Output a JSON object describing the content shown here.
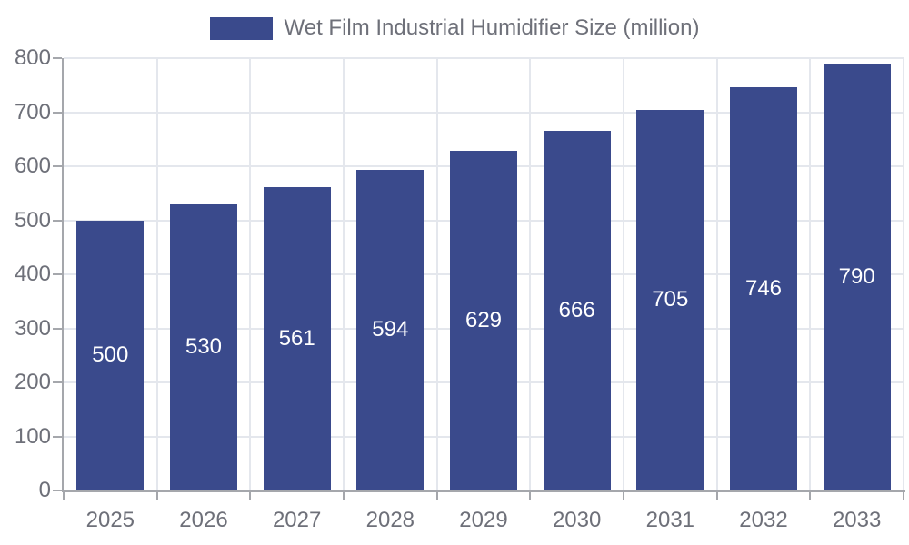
{
  "chart_data": {
    "type": "bar",
    "title": "",
    "legend": [
      "Wet Film Industrial Humidifier Size (million)"
    ],
    "categories": [
      "2025",
      "2026",
      "2027",
      "2028",
      "2029",
      "2030",
      "2031",
      "2032",
      "2033"
    ],
    "series": [
      {
        "name": "Wet Film Industrial Humidifier Size (million)",
        "values": [
          500,
          530,
          561,
          594,
          629,
          666,
          705,
          746,
          790
        ]
      }
    ],
    "xlabel": "",
    "ylabel": "",
    "ylim": [
      0,
      800
    ],
    "yticks": [
      0,
      100,
      200,
      300,
      400,
      500,
      600,
      700,
      800
    ],
    "grid": true,
    "legend_position": "top-center",
    "bar_label_position": "inside-center"
  },
  "colors": {
    "bar": "#3A4A8C",
    "bar_label": "#FFFFFF",
    "axis_text": "#6E7079",
    "axis_line": "#A5A7AC",
    "grid_line": "#E4E7ED",
    "background": "#FFFFFF"
  }
}
